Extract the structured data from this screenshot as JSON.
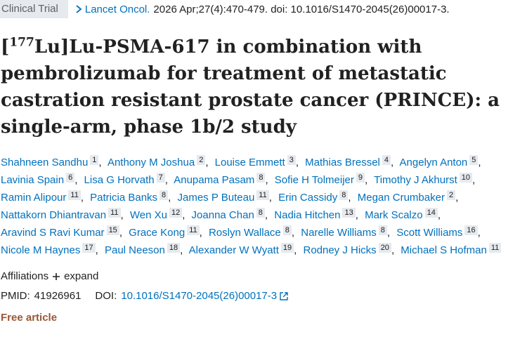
{
  "header": {
    "badge": "Clinical Trial",
    "journal": "Lancet Oncol.",
    "citation": "2026 Apr;27(4):470-479. doi: 10.1016/S1470-2045(26)00017-3."
  },
  "title": {
    "open": "[",
    "isotope": "177",
    "rest": "Lu]Lu-PSMA-617 in combination with pembrolizumab for treatment of metastatic castration resistant prostate cancer (PRINCE): a single-arm, phase 1b/2 study"
  },
  "author_separator": ",",
  "authors": [
    {
      "name": "Shahneen Sandhu",
      "aff": 1
    },
    {
      "name": "Anthony M Joshua",
      "aff": 2
    },
    {
      "name": "Louise Emmett",
      "aff": 3
    },
    {
      "name": "Mathias Bressel",
      "aff": 4
    },
    {
      "name": "Angelyn Anton",
      "aff": 5
    },
    {
      "name": "Lavinia Spain",
      "aff": 6
    },
    {
      "name": "Lisa G Horvath",
      "aff": 7
    },
    {
      "name": "Anupama Pasam",
      "aff": 8
    },
    {
      "name": "Sofie H Tolmeijer",
      "aff": 9
    },
    {
      "name": "Timothy J Akhurst",
      "aff": 10
    },
    {
      "name": "Ramin Alipour",
      "aff": 11
    },
    {
      "name": "Patricia Banks",
      "aff": 8
    },
    {
      "name": "James P Buteau",
      "aff": 11
    },
    {
      "name": "Erin Cassidy",
      "aff": 8
    },
    {
      "name": "Megan Crumbaker",
      "aff": 2
    },
    {
      "name": "Nattakorn Dhiantravan",
      "aff": 11
    },
    {
      "name": "Wen Xu",
      "aff": 12
    },
    {
      "name": "Joanna Chan",
      "aff": 8
    },
    {
      "name": "Nadia Hitchen",
      "aff": 13
    },
    {
      "name": "Mark Scalzo",
      "aff": 14
    },
    {
      "name": "Aravind S Ravi Kumar",
      "aff": 15
    },
    {
      "name": "Grace Kong",
      "aff": 11
    },
    {
      "name": "Roslyn Wallace",
      "aff": 8
    },
    {
      "name": "Narelle Williams",
      "aff": 8
    },
    {
      "name": "Scott Williams",
      "aff": 16
    },
    {
      "name": "Nicole M Haynes",
      "aff": 17
    },
    {
      "name": "Paul Neeson",
      "aff": 18
    },
    {
      "name": "Alexander W Wyatt",
      "aff": 19
    },
    {
      "name": "Rodney J Hicks",
      "aff": 20
    },
    {
      "name": "Michael S Hofman",
      "aff": 11
    }
  ],
  "affiliations": {
    "label": "Affiliations",
    "toggle": "expand"
  },
  "identifiers": {
    "pmid_label": "PMID:",
    "pmid": "41926961",
    "doi_label": "DOI:",
    "doi": "10.1016/S1470-2045(26)00017-3"
  },
  "free_article": "Free article"
}
